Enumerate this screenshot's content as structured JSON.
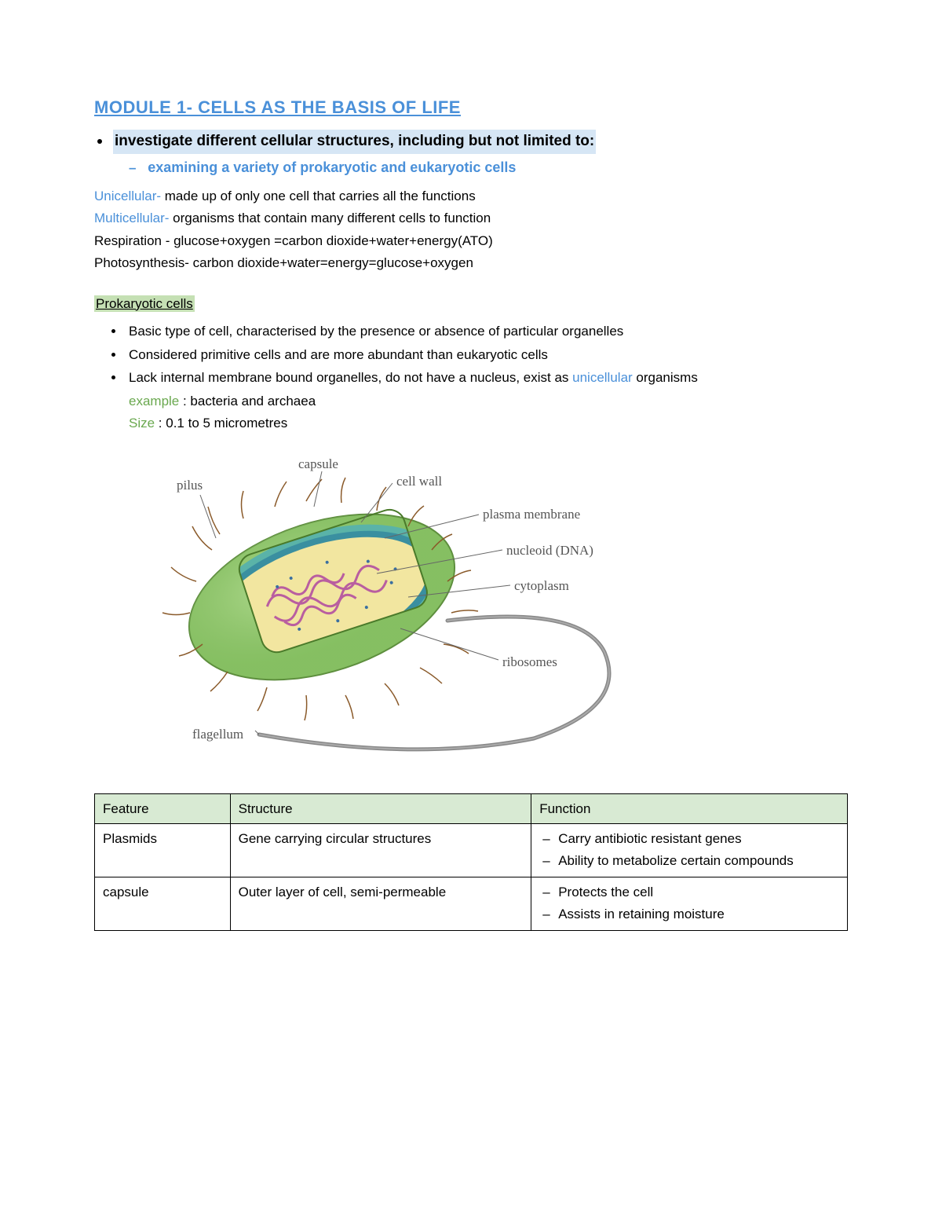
{
  "title": "MODULE 1- CELLS AS THE BASIS OF LIFE",
  "outcome": "investigate different cellular structures, including but not limited to:",
  "sub_outcome": "examining a variety of prokaryotic and eukaryotic cells",
  "defs": {
    "uni_term": "Unicellular-",
    "uni_def": " made up of only one cell that carries all the functions",
    "multi_term": "Multicellular-",
    "multi_def": " organisms that contain many different cells to function",
    "resp": "Respiration - glucose+oxygen =carbon dioxide+water+energy(ATO)",
    "photo": "Photosynthesis- carbon dioxide+water=energy=glucose+oxygen"
  },
  "section": "Prokaryotic cells",
  "bullets": [
    "Basic type of cell, characterised by the presence or absence of particular organelles",
    "Considered primitive cells and are more abundant than eukaryotic cells"
  ],
  "bullet3_a": "Lack internal membrane bound organelles, do not have a nucleus, exist as ",
  "bullet3_link": "unicellular",
  "bullet3_b": " organisms",
  "example_label": "example",
  "example_text": " : bacteria and archaea",
  "size_label": "Size",
  "size_text": " : 0.1 to 5 micrometres",
  "diagram_labels": {
    "pilus": "pilus",
    "capsule": "capsule",
    "cellwall": "cell wall",
    "plasma": "plasma membrane",
    "nucleoid": "nucleoid (DNA)",
    "cytoplasm": "cytoplasm",
    "ribosomes": "ribosomes",
    "flagellum": "flagellum"
  },
  "table": {
    "headers": [
      "Feature",
      "Structure",
      "Function"
    ],
    "rows": [
      {
        "feature": "Plasmids",
        "structure": "Gene carrying circular structures",
        "functions": [
          "Carry antibiotic resistant genes",
          "Ability to metabolize certain compounds"
        ]
      },
      {
        "feature": "capsule",
        "structure": "Outer layer of cell, semi-permeable",
        "functions": [
          "Protects the cell",
          "Assists in retaining moisture"
        ]
      }
    ]
  },
  "colors": {
    "capsule_outer": "#8fc96a",
    "capsule_shade": "#6fa84e",
    "wall": "#5ab3a8",
    "membrane": "#3a8fa0",
    "cytoplasm": "#f2e6a0",
    "dna": "#b34fa0",
    "pili": "#8a5a2a",
    "flagellum": "#888"
  }
}
